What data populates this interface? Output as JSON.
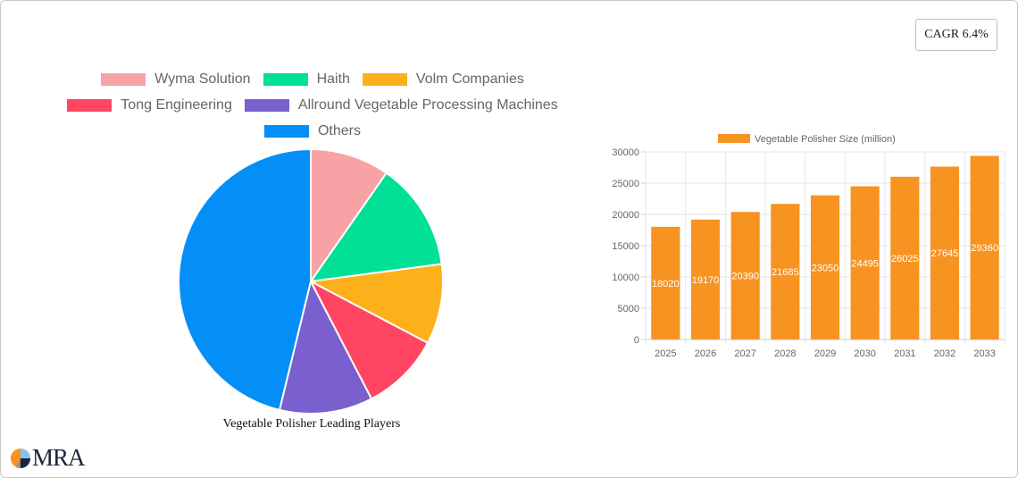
{
  "badge": {
    "cagr_label": "CAGR 6.4%"
  },
  "pie": {
    "caption": "Vegetable Polisher Leading Players",
    "legend_rows": [
      [
        0,
        1,
        2
      ],
      [
        3,
        4
      ],
      [
        5
      ]
    ]
  },
  "bar": {
    "legend_label": "Vegetable Polisher Size (million)"
  },
  "logo": {
    "text": "MRA"
  },
  "chart_data": [
    {
      "type": "pie",
      "title": "Vegetable Polisher Leading Players",
      "labels": [
        "Wyma Solution",
        "Haith",
        "Volm Companies",
        "Tong Engineering",
        "Allround Vegetable Processing Machines",
        "Others"
      ],
      "values": [
        9.7,
        13.2,
        9.8,
        9.7,
        11.4,
        46.2
      ],
      "colors": [
        "#f7a3a5",
        "#00e096",
        "#fdb01a",
        "#ff4561",
        "#7a5fcf",
        "#038ff7"
      ],
      "legend_position": "top"
    },
    {
      "type": "bar",
      "title": "",
      "categories": [
        "2025",
        "2026",
        "2027",
        "2028",
        "2029",
        "2030",
        "2031",
        "2032",
        "2033"
      ],
      "series": [
        {
          "name": "Vegetable Polisher Size (million)",
          "values": [
            18020,
            19170,
            20390,
            21685,
            23050,
            24495,
            26025,
            27645,
            29360
          ],
          "color": "#f79321"
        }
      ],
      "xlabel": "",
      "ylabel": "",
      "ylim": [
        0,
        30000
      ],
      "yticks": [
        0,
        5000,
        10000,
        15000,
        20000,
        25000,
        30000
      ],
      "grid": true,
      "data_labels": true,
      "legend_position": "top"
    }
  ]
}
